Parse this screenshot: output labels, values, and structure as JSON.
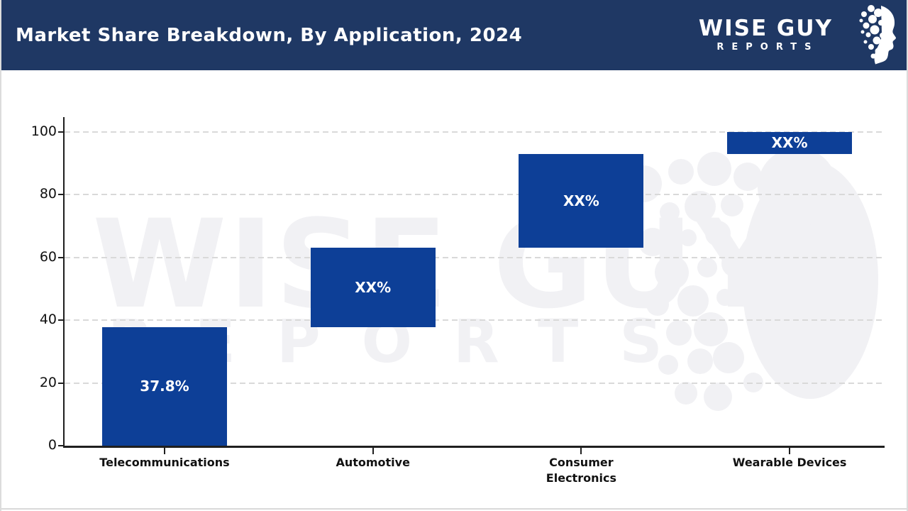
{
  "header": {
    "title": "Market Share Breakdown, By Application, 2024",
    "logo_line1": "WISE GUY",
    "logo_line2": "REPORTS"
  },
  "watermark": {
    "line1": "WISE GUY",
    "line2": "REPORTS"
  },
  "colors": {
    "header_bg": "#1F3864",
    "bar": "#0D3F97",
    "grid": "#D9D9D9",
    "axis": "#1F1F1F",
    "watermark": "#F1F1F4",
    "bar_label": "#FFFFFF",
    "title_text": "#FFFFFF"
  },
  "chart_data": {
    "type": "bar",
    "subtype": "waterfall",
    "title": "Market Share Breakdown, By Application, 2024",
    "categories": [
      "Telecommunications",
      "Automotive",
      "Consumer Electronics",
      "Wearable Devices"
    ],
    "segments": [
      {
        "category": "Telecommunications",
        "start": 0,
        "end": 37.8,
        "label": "37.8%"
      },
      {
        "category": "Automotive",
        "start": 37.8,
        "end": 63.2,
        "label": "XX%"
      },
      {
        "category": "Consumer Electronics",
        "start": 63.2,
        "end": 93.0,
        "label": "XX%"
      },
      {
        "category": "Wearable Devices",
        "start": 93.0,
        "end": 100.0,
        "label": "XX%"
      }
    ],
    "yticks": [
      0,
      20,
      40,
      60,
      80,
      100
    ],
    "ylim": [
      0,
      100
    ],
    "xlabel": "",
    "ylabel": "",
    "grid": "horizontal-dashed",
    "legend": "none"
  }
}
